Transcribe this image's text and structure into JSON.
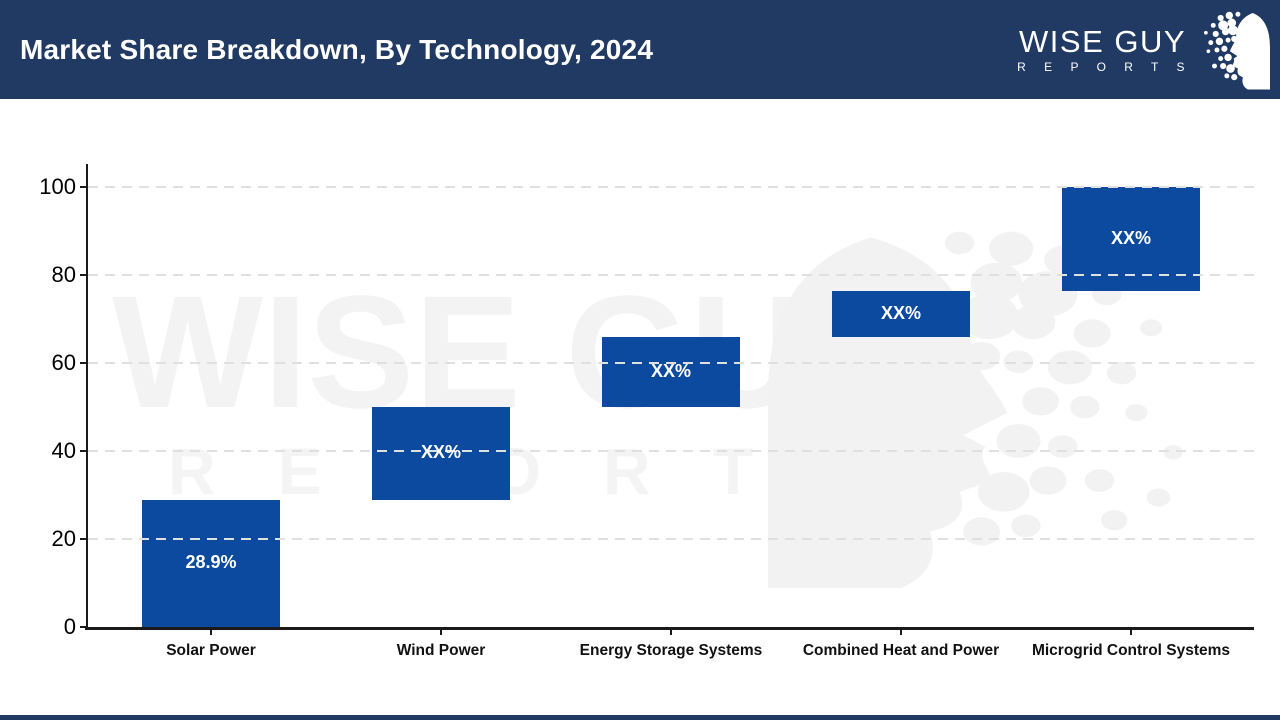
{
  "header": {
    "title": "Market Share Breakdown, By Technology, 2024",
    "logo": {
      "title": "WISE GUY",
      "subtitle": "R E P O R T S"
    }
  },
  "watermark": {
    "line1": "WISE GUY",
    "line2": "REPORTS"
  },
  "colors": {
    "header_bg": "#213A63",
    "bar": "#0B4A9E",
    "grid": "#E0E0E0",
    "axis": "#1A1A1A",
    "bar_label_text": "#FFFFFF",
    "watermark": "#F3F3F3"
  },
  "chart_data": {
    "type": "bar",
    "subtype": "waterfall",
    "title": "Market Share Breakdown, By Technology, 2024",
    "categories": [
      "Solar Power",
      "Wind Power",
      "Energy Storage Systems",
      "Combined Heat and Power",
      "Microgrid Control Systems"
    ],
    "segments": [
      {
        "category": "Solar Power",
        "start": 0,
        "end": 28.9,
        "label": "28.9%"
      },
      {
        "category": "Wind Power",
        "start": 28.9,
        "end": 49.9,
        "label": "XX%"
      },
      {
        "category": "Energy Storage Systems",
        "start": 49.9,
        "end": 65.8,
        "label": "XX%"
      },
      {
        "category": "Combined Heat and Power",
        "start": 65.8,
        "end": 76.2,
        "label": "XX%"
      },
      {
        "category": "Microgrid Control Systems",
        "start": 76.2,
        "end": 100,
        "label": "XX%"
      }
    ],
    "xlabel": "",
    "ylabel": "",
    "yticks": [
      0,
      20,
      40,
      60,
      80,
      100
    ],
    "ylim": [
      0,
      105
    ],
    "grid": "horizontal-dashed",
    "legend": "none",
    "bar_color": "#0B4A9E"
  }
}
